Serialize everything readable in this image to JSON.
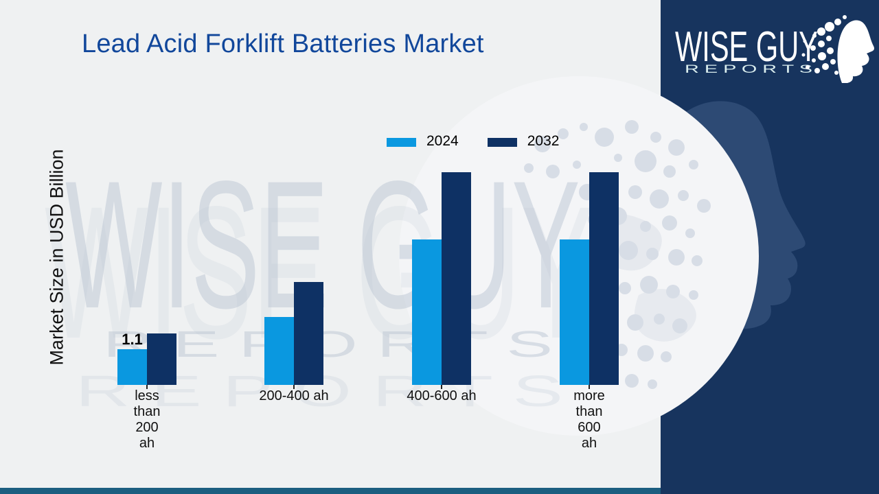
{
  "title": "Lead Acid Forklift Batteries Market",
  "watermark": {
    "line1": "WISE GUY",
    "line2": "R E P O R T S"
  },
  "logo": {
    "line1": "WISE GUY",
    "line2": "R E P O R T S"
  },
  "colors": {
    "background": "#eff1f2",
    "title_text": "#11479b",
    "bar_2024": "#0a98e0",
    "bar_2032": "#0e3164",
    "brand_panel": "#17345e",
    "face_silhouette": "#2d4a74",
    "circle_fill": "#f4f5f7",
    "dots_gray": "#c5cedb",
    "watermark_gray": "#bcc6d4",
    "bottom_bar_teal": "#1c5e80",
    "axis_text": "#111111"
  },
  "chart_data": {
    "type": "bar",
    "title": "Lead Acid Forklift Batteries Market",
    "xlabel": "",
    "ylabel": "Market Size in USD Billion",
    "ylim": [
      0,
      7
    ],
    "grid": false,
    "legend_position": "top",
    "categories": [
      "less than 200 ah",
      "200-400 ah",
      "400-600 ah",
      "more than 600 ah"
    ],
    "category_lines": [
      [
        "less",
        "than",
        "200",
        "ah"
      ],
      [
        "200-400 ah"
      ],
      [
        "400-600 ah"
      ],
      [
        "more",
        "than",
        "600",
        "ah"
      ]
    ],
    "series": [
      {
        "name": "2024",
        "color": "#0a98e0",
        "values": [
          1.1,
          2.1,
          4.5,
          4.5
        ]
      },
      {
        "name": "2032",
        "color": "#0e3164",
        "values": [
          1.6,
          3.2,
          6.6,
          6.6
        ]
      }
    ],
    "data_labels": [
      {
        "text": "1.1",
        "series_index": 0,
        "category_index": 0
      }
    ]
  }
}
